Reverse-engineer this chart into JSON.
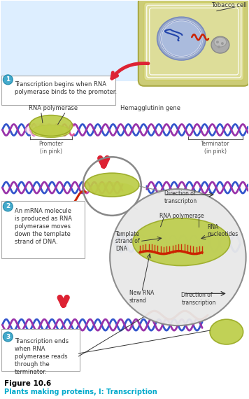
{
  "title": "Figure 10.6",
  "subtitle": "Plants making proteins, I: Transcription",
  "title_color": "#000000",
  "subtitle_color": "#00aacc",
  "bg_color": "#ffffff",
  "step1_text": "Transcription begins when RNA\npolymerase binds to the promoter.",
  "step2_text": "An mRNA molecule\nis produced as RNA\npolymerase moves\ndown the template\nstrand of DNA.",
  "step3_text": "Transcription ends\nwhen RNA\npolymerase reads\nthrough the\nterminator.",
  "rna_pol_label": "RNA polymerase",
  "hemagglutinin_label": "Hemagglutinin gene",
  "promoter_label": "Promoter\n(in pink)",
  "terminator_label": "Terminator\n(in pink)",
  "direction_label1": "Direction of\ntranscripton",
  "rna_pol_label2": "RNA polymerase",
  "template_label": "Template\nstrand of\nDNA",
  "rna_nuc_label": "RNA\nnucleotides",
  "new_rna_label": "New RNA\nstrand",
  "direction_label2": "Direction of\ntranscription",
  "tobacco_label": "Tobacco cell",
  "dna_blue": "#3355cc",
  "dna_purple": "#9933aa",
  "dna_pink": "#ee88aa",
  "rna_red": "#cc2200",
  "polymerase_green": "#aabb33",
  "cell_yellow": "#dddd99",
  "cell_border": "#bbbb55",
  "nucleus_blue": "#7799cc",
  "arrow_red": "#dd2233",
  "light_blue_bg": "#ddeeff"
}
